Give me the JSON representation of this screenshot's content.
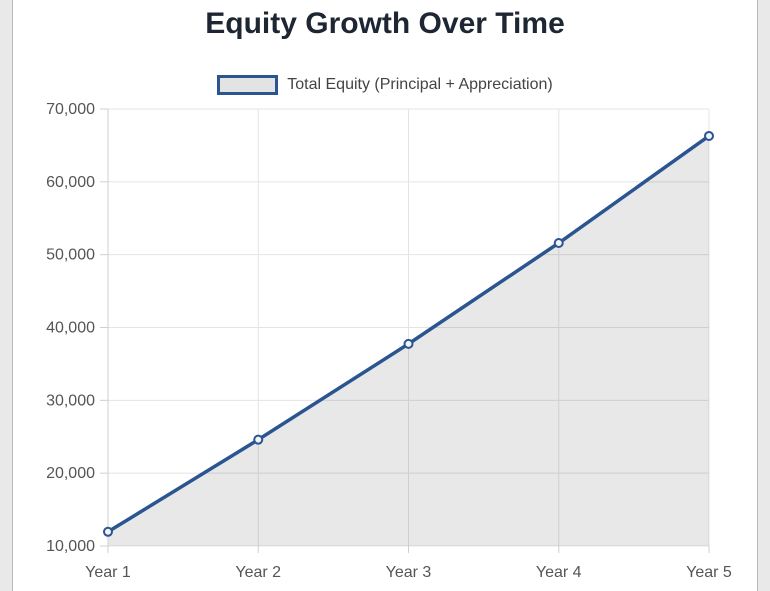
{
  "chart_data": {
    "type": "line",
    "title": "Equity Growth Over Time",
    "categories": [
      "Year 1",
      "Year 2",
      "Year 3",
      "Year 4",
      "Year 5"
    ],
    "series": [
      {
        "name": "Total Equity (Principal + Appreciation)",
        "values": [
          11950,
          24600,
          37750,
          51600,
          66300
        ]
      }
    ],
    "xlabel": "",
    "ylabel": "",
    "ylim": [
      10000,
      70000
    ],
    "y_tick_step": 10000,
    "y_tick_labels": [
      "10,000",
      "20,000",
      "30,000",
      "40,000",
      "50,000",
      "60,000",
      "70,000"
    ],
    "grid": true,
    "legend_position": "top",
    "area_fill": true,
    "marker_style": "circle",
    "colors": {
      "line": "#2a5591",
      "area": "rgba(0,0,0,0.09)",
      "marker_fill": "#f2f3f5",
      "grid": "#e4e4e4",
      "axis": "#cfcfcf",
      "tick_text": "#555555",
      "title_text": "#1e2633",
      "legend_text": "#444444"
    }
  }
}
